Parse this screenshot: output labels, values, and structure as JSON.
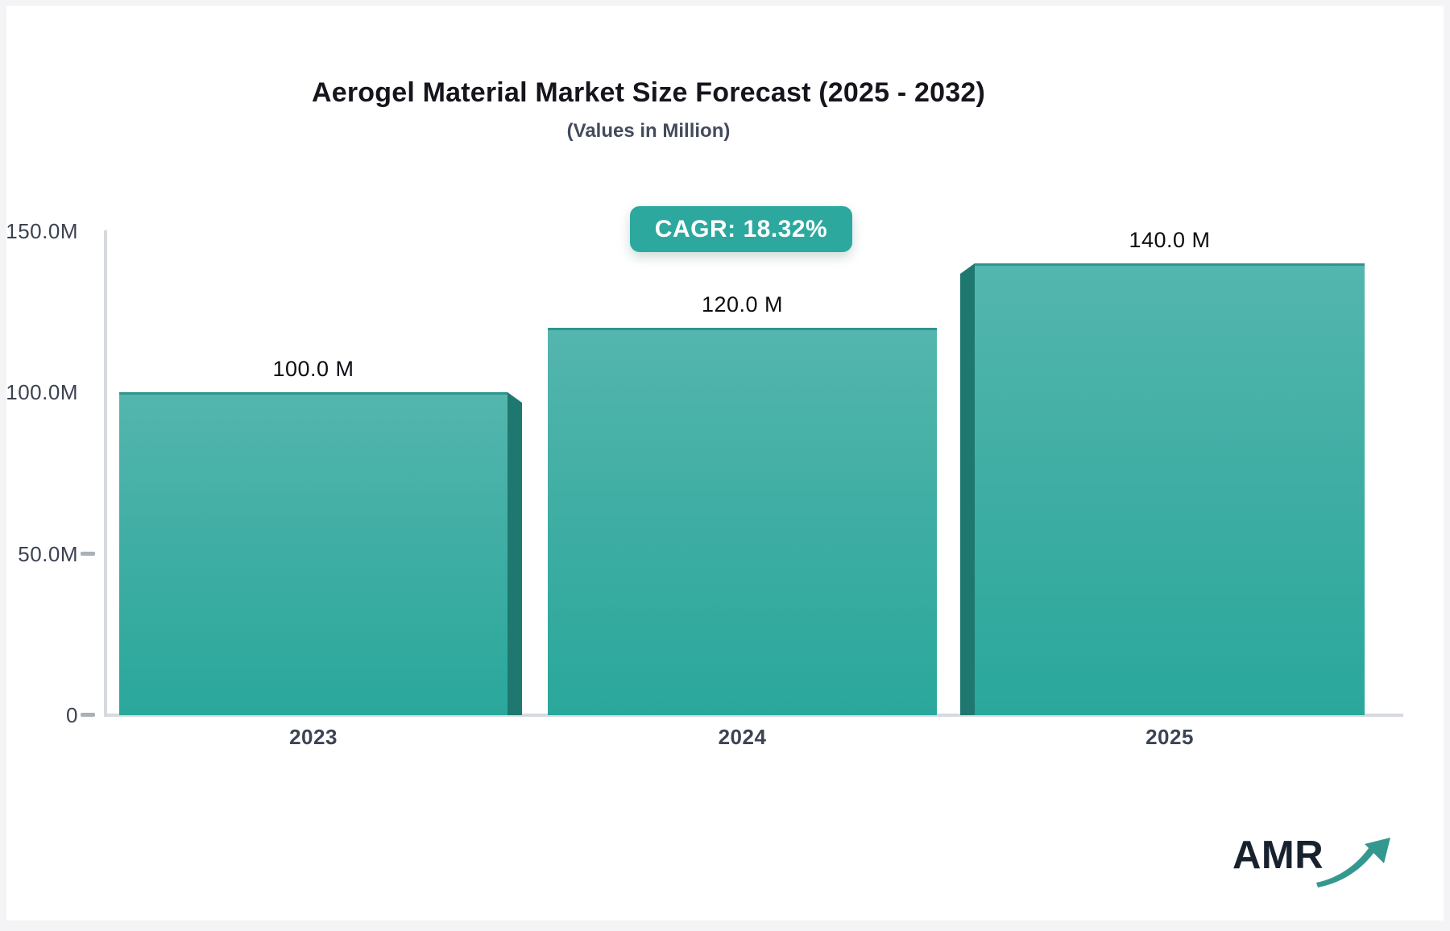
{
  "header": {
    "title": "Aerogel Material Market Size Forecast (2025 - 2032)",
    "subtitle": "(Values in Million)"
  },
  "badge": {
    "label": "CAGR: 18.32%"
  },
  "chart_data": {
    "type": "bar",
    "title": "Aerogel Material Market Size Forecast (2025 - 2032)",
    "subtitle": "(Values in Million)",
    "unit": "Million",
    "cagr_percent": 18.32,
    "categories": [
      "2023",
      "2024",
      "2025"
    ],
    "values": [
      100.0,
      120.0,
      140.0
    ],
    "value_labels": [
      "100.0 M",
      "120.0 M",
      "140.0 M"
    ],
    "xlabel": "",
    "ylabel": "",
    "ylim": [
      0,
      150
    ],
    "y_ticks": [
      "150.0M",
      "100.0M",
      "50.0M",
      "0"
    ],
    "y_tick_values": [
      150,
      100,
      50,
      0
    ],
    "grid": "off",
    "legend": "none",
    "bar_color_top": "#54b6ae",
    "bar_color_bottom": "#2aa79b",
    "bar_side_color": "#1f786f",
    "badge_color": "#2ca89e"
  },
  "logo": {
    "text": "AMR",
    "arrow_icon_color": "#35988f"
  }
}
